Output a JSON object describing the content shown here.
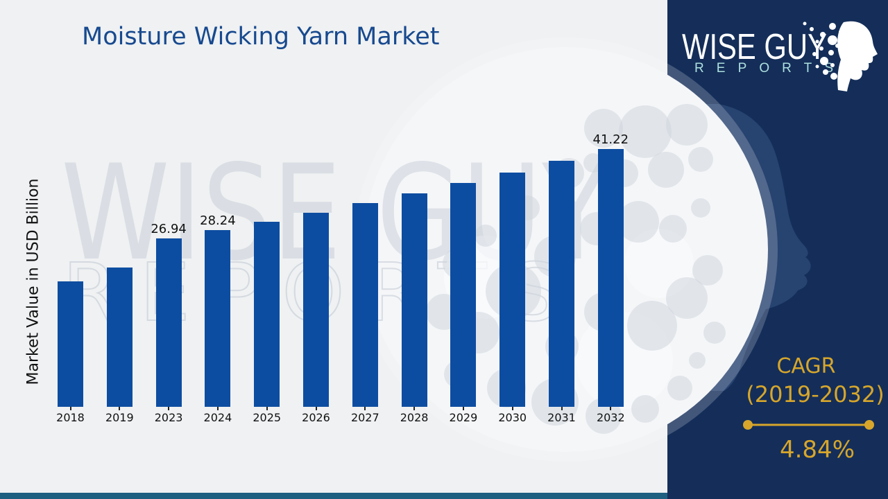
{
  "page": {
    "title": "Moisture Wicking Yarn Market"
  },
  "y_axis_label": "Market Value in USD Billion",
  "logo": {
    "line1": "WISE GUY",
    "line2": "REPORTS"
  },
  "watermark": {
    "line1": "WISE GUY",
    "line2": "REPORTS"
  },
  "cagr_panel": {
    "heading": "CAGR",
    "range": "(2019-2032)",
    "value": "4.84%"
  },
  "colors": {
    "bar": "#0d4da1",
    "title": "#17498f",
    "panel_navy": "#142e59",
    "panel_face": "#274370",
    "gold": "#d7a62b",
    "teal_strip": "#1d6080",
    "background": "#eff1f2",
    "circle": "#f5f6f8"
  },
  "chart_data": {
    "type": "bar",
    "title": "Moisture Wicking Yarn Market",
    "xlabel": "",
    "ylabel": "Market Value in USD Billion",
    "categories": [
      "2018",
      "2019",
      "2023",
      "2024",
      "2025",
      "2026",
      "2027",
      "2028",
      "2029",
      "2030",
      "2031",
      "2032"
    ],
    "values": [
      20.1,
      22.3,
      26.94,
      28.24,
      29.61,
      31.04,
      32.55,
      34.12,
      35.77,
      37.51,
      39.32,
      41.22
    ],
    "bar_labels": {
      "2023": "26.94",
      "2024": "28.24",
      "2032": "41.22"
    },
    "ylim": [
      0,
      44
    ],
    "grid": false,
    "legend": null,
    "bar_color": "#0d4da1",
    "cagr_note": "CAGR (2019-2032) 4.84%"
  }
}
